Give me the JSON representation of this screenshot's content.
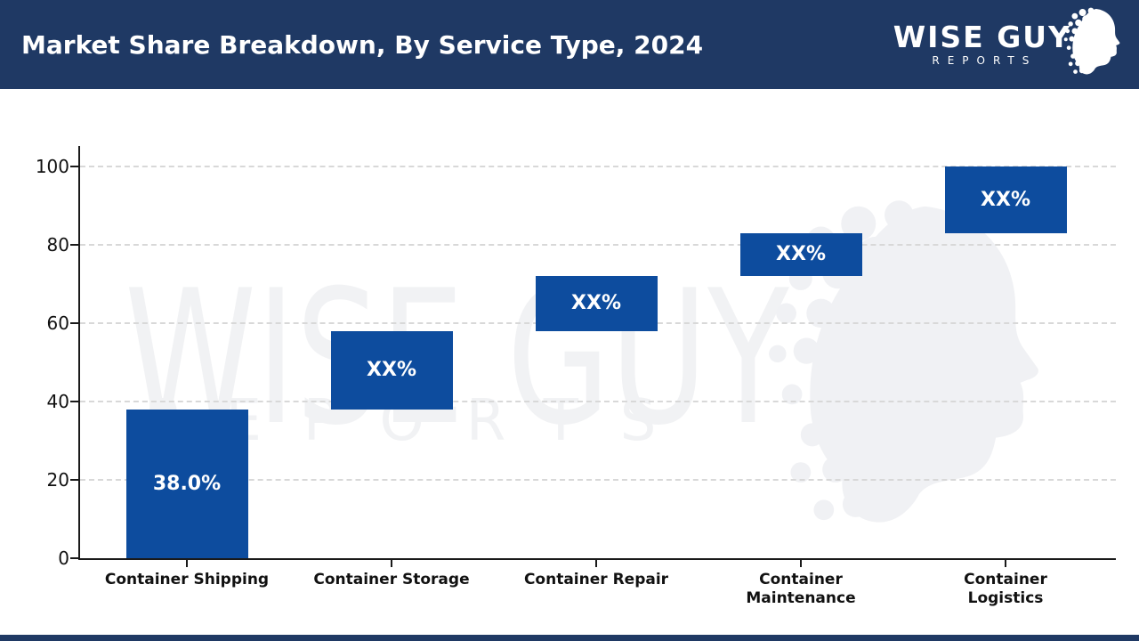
{
  "header": {
    "title": "Market Share Breakdown, By Service Type, 2024",
    "logo": {
      "line1": "WISE GUY",
      "line2": "REPORTS",
      "icon": "face-profile-dots"
    }
  },
  "watermark": {
    "line1": "WISE GUY",
    "line2": "REPORTS",
    "icon": "face-profile-dots"
  },
  "footer": {},
  "chart_data": {
    "type": "bar",
    "subtype": "waterfall",
    "title": "Market Share Breakdown, By Service Type, 2024",
    "categories": [
      "Container Shipping",
      "Container Storage",
      "Container Repair",
      "Container Maintenance",
      "Container Logistics"
    ],
    "category_lines": [
      [
        "Container Shipping"
      ],
      [
        "Container Storage"
      ],
      [
        "Container Repair"
      ],
      [
        "Container",
        "Maintenance"
      ],
      [
        "Container",
        "Logistics"
      ]
    ],
    "bars": [
      {
        "category": "Container Shipping",
        "start": 0,
        "end": 38,
        "value": 38,
        "label": "38.0%"
      },
      {
        "category": "Container Storage",
        "start": 38,
        "end": 58,
        "value": 20,
        "label": "XX%"
      },
      {
        "category": "Container Repair",
        "start": 58,
        "end": 72,
        "value": 14,
        "label": "XX%"
      },
      {
        "category": "Container Maintenance",
        "start": 72,
        "end": 83,
        "value": 11,
        "label": "XX%"
      },
      {
        "category": "Container Logistics",
        "start": 83,
        "end": 100,
        "value": 17,
        "label": "XX%"
      }
    ],
    "xlabel": "",
    "ylabel": "",
    "ylim": [
      0,
      105
    ],
    "yticks": [
      0,
      20,
      40,
      60,
      80,
      100
    ],
    "grid": "horizontal-dashed",
    "legend": "none",
    "colors": {
      "bar": "#0d4c9e",
      "bar_label": "#ffffff",
      "grid": "#d8d8d8",
      "axis": "#1a1a1a",
      "header_bg": "#1f3964",
      "footer_bg": "#1f3964",
      "watermark": "#f1f2f4"
    }
  }
}
